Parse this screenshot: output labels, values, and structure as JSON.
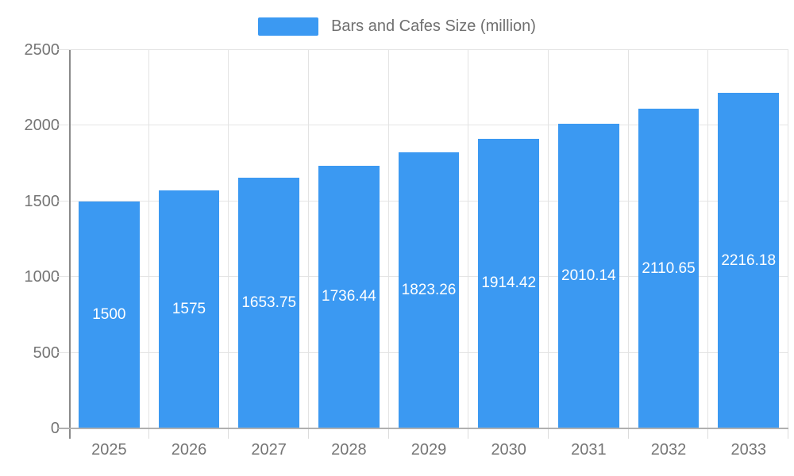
{
  "legend": {
    "label": "Bars and Cafes Size (million)",
    "swatch_color": "#3b99f2"
  },
  "chart_data": {
    "type": "bar",
    "title": "Bars and Cafes Size (million)",
    "xlabel": "",
    "ylabel": "",
    "categories": [
      "2025",
      "2026",
      "2027",
      "2028",
      "2029",
      "2030",
      "2031",
      "2032",
      "2033"
    ],
    "values": [
      1500,
      1575,
      1653.75,
      1736.44,
      1823.26,
      1914.42,
      2010.14,
      2110.65,
      2216.18
    ],
    "value_labels": [
      "1500",
      "1575",
      "1653.75",
      "1736.44",
      "1823.26",
      "1914.42",
      "2010.14",
      "2110.65",
      "2216.18"
    ],
    "ylim": [
      0,
      2500
    ],
    "y_ticks": [
      0,
      500,
      1000,
      1500,
      2000,
      2500
    ],
    "grid": true,
    "legend_position": "top",
    "bar_color": "#3b99f2",
    "value_label_color": "#ffffff",
    "axis_label_color": "#757575"
  }
}
